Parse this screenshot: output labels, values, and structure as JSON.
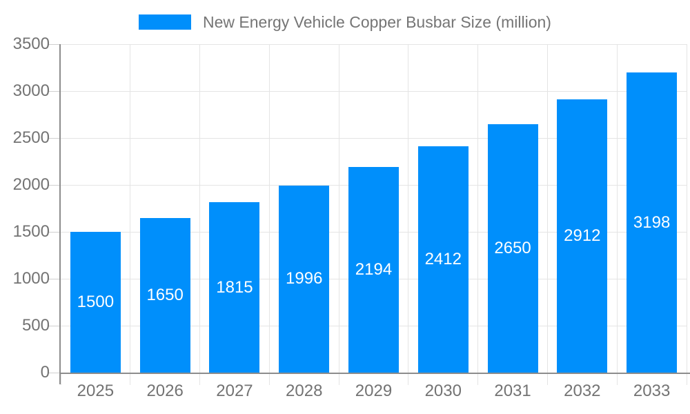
{
  "chart_data": {
    "type": "bar",
    "title": "",
    "legend_position": "top",
    "series": [
      {
        "name": "New Energy Vehicle Copper Busbar Size (million)",
        "values": [
          1500,
          1650,
          1815,
          1996,
          2194,
          2412,
          2650,
          2912,
          3198
        ]
      }
    ],
    "categories": [
      "2025",
      "2026",
      "2027",
      "2028",
      "2029",
      "2030",
      "2031",
      "2032",
      "2033"
    ],
    "data_labels": [
      "1500",
      "1650",
      "1815",
      "1996",
      "2194",
      "2412",
      "2650",
      "2912",
      "3198"
    ],
    "data_label_position": "inside-center",
    "xlabel": "",
    "ylabel": "",
    "ylim": [
      0,
      3500
    ],
    "yticks": [
      0,
      500,
      1000,
      1500,
      2000,
      2500,
      3000,
      3500
    ],
    "grid": true,
    "colors": {
      "bar": "#008FFB",
      "bar_label": "#ffffff",
      "axis_label": "#737373",
      "legend_text": "#757575",
      "grid_line": "#e4e4e4",
      "tick_line": "#cfcfcf",
      "axis_line": "#8c8c8c",
      "background": "#ffffff"
    }
  }
}
